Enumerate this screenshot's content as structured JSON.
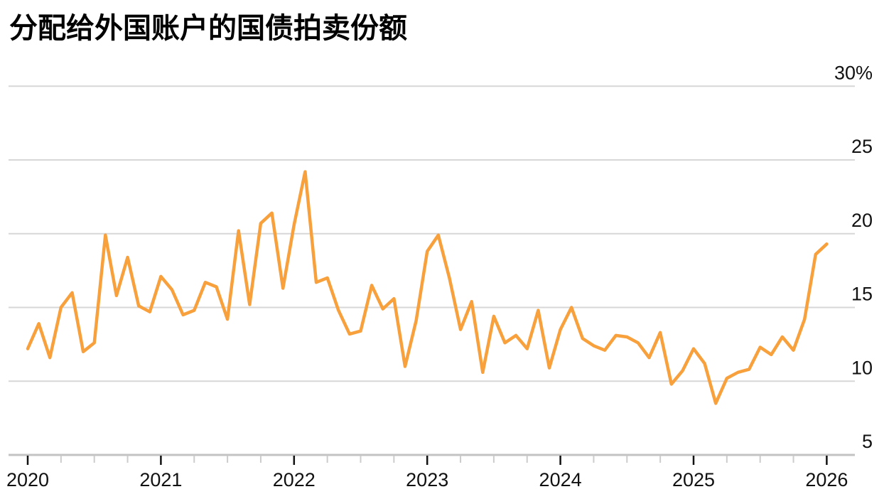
{
  "page": {
    "title": "分配给外国账户的国债拍卖份额"
  },
  "chart_data": {
    "type": "line",
    "title": "分配给外国账户的国债拍卖份额",
    "unit": "%",
    "frequency": "monthly",
    "x_start": "2020-01",
    "x_end": "2026-01",
    "x_tick_labels": [
      "2020",
      "2021",
      "2022",
      "2023",
      "2024",
      "2025",
      "2026"
    ],
    "y_ticks": [
      30,
      25,
      20,
      15,
      10,
      5
    ],
    "y_tick_labels": [
      "30%",
      "25",
      "20",
      "15",
      "10",
      "5"
    ],
    "ylim": [
      5,
      30
    ],
    "grid": "horizontal",
    "legend": "none",
    "line_color": "#F7A03C",
    "grid_color": "#d7d7d7",
    "axis_color": "#c3c3c3",
    "year_tick_color": "#111111",
    "quarter_tick_color": "#cccccc",
    "series": [
      {
        "name": "分配给外国账户的国债拍卖份额",
        "values": [
          12.2,
          13.9,
          11.6,
          15.0,
          16.0,
          12.0,
          12.6,
          19.9,
          15.8,
          18.4,
          15.1,
          14.7,
          17.1,
          16.2,
          14.5,
          14.8,
          16.7,
          16.4,
          14.2,
          20.2,
          15.2,
          20.7,
          21.4,
          16.3,
          20.6,
          24.2,
          16.7,
          17.0,
          14.8,
          13.2,
          13.4,
          16.5,
          14.9,
          15.6,
          11.0,
          14.1,
          18.8,
          19.9,
          17.0,
          13.5,
          15.4,
          10.6,
          14.4,
          12.6,
          13.1,
          12.2,
          14.8,
          10.9,
          13.5,
          15.0,
          12.9,
          12.4,
          12.1,
          13.1,
          13.0,
          12.6,
          11.6,
          13.3,
          9.8,
          10.7,
          12.2,
          11.2,
          8.5,
          10.2,
          10.6,
          10.8,
          12.3,
          11.8,
          13.0,
          12.1,
          14.2,
          18.6,
          19.3
        ]
      }
    ]
  }
}
